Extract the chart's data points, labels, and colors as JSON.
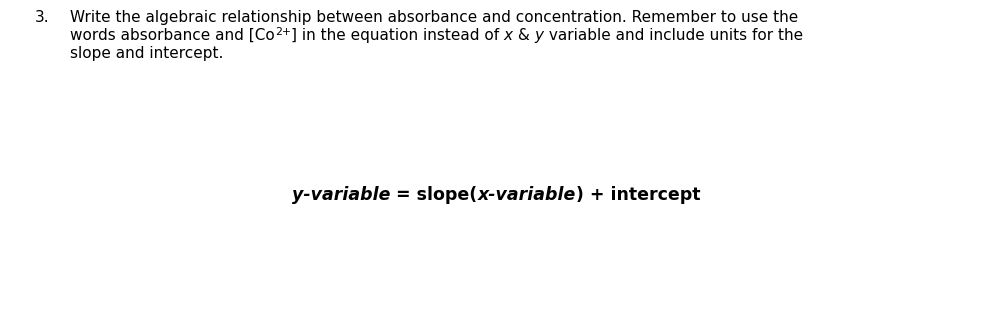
{
  "background_color": "#ffffff",
  "text_color": "#000000",
  "fig_width": 9.92,
  "fig_height": 3.23,
  "dpi": 100,
  "text_fontsize": 11.0,
  "eq_fontsize": 12.5,
  "number": "3.",
  "line1": "Write the algebraic relationship between absorbance and concentration. Remember to use the",
  "line2_pre": "words absorbance and [Co",
  "line2_super": "2+",
  "line2_post": "] in the equation instead of ",
  "line2_x": "x",
  "line2_amp": " & ",
  "line2_y": "y",
  "line2_end": " variable and include units for the",
  "line3": "slope and intercept.",
  "eq_p1": "y-variable",
  "eq_p2": " = slope(",
  "eq_p3": "x-variable",
  "eq_p4": ") + intercept"
}
